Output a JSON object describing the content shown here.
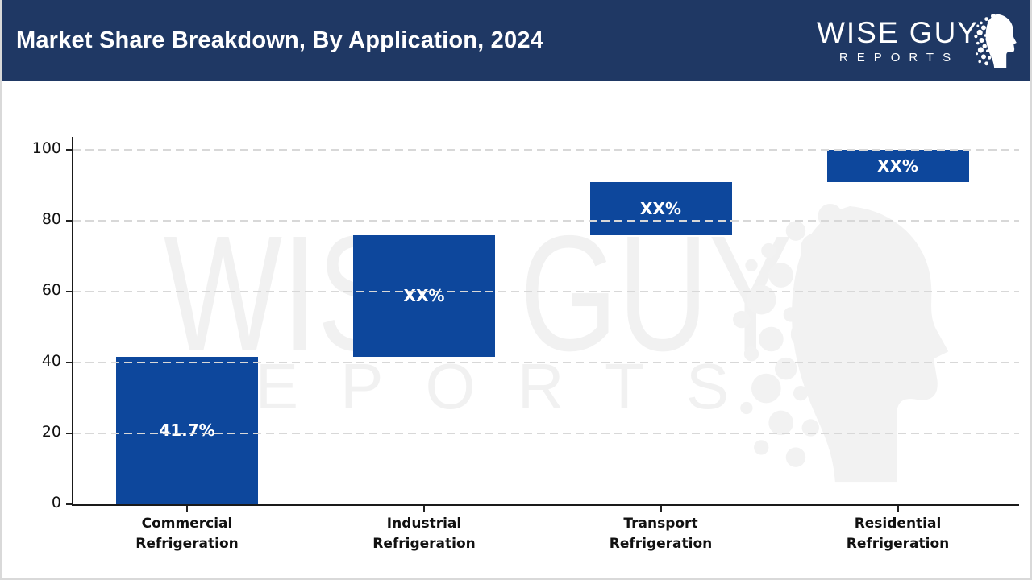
{
  "header": {
    "title": "Market Share Breakdown, By Application, 2024",
    "bg_color": "#1f3864",
    "logo": {
      "line1": "WISE GUY",
      "line2": "REPORTS",
      "head_icon": "dotted-head-profile"
    }
  },
  "watermark": {
    "line1": "WISE GUY",
    "line2": "REPORTS"
  },
  "chart_data": {
    "type": "bar",
    "subtype": "waterfall",
    "title": "Market Share Breakdown, By Application, 2024",
    "categories": [
      "Commercial Refrigeration",
      "Industrial Refrigeration",
      "Transport Refrigeration",
      "Residential Refrigeration"
    ],
    "segments": [
      {
        "category": "Commercial Refrigeration",
        "start": 0,
        "end": 41.7,
        "label": "41.7%"
      },
      {
        "category": "Industrial Refrigeration",
        "start": 41.7,
        "end": 75.9,
        "label": "XX%"
      },
      {
        "category": "Transport Refrigeration",
        "start": 75.9,
        "end": 90.8,
        "label": "XX%"
      },
      {
        "category": "Residential Refrigeration",
        "start": 90.8,
        "end": 100,
        "label": "XX%"
      }
    ],
    "ylim": [
      0,
      100
    ],
    "yticks": [
      0,
      20,
      40,
      60,
      80,
      100
    ],
    "xlabel": "",
    "ylabel": "",
    "bar_color": "#0d479c",
    "grid": "horizontal-dashed",
    "grid_color": "#d8d8d8",
    "legend": "none"
  }
}
